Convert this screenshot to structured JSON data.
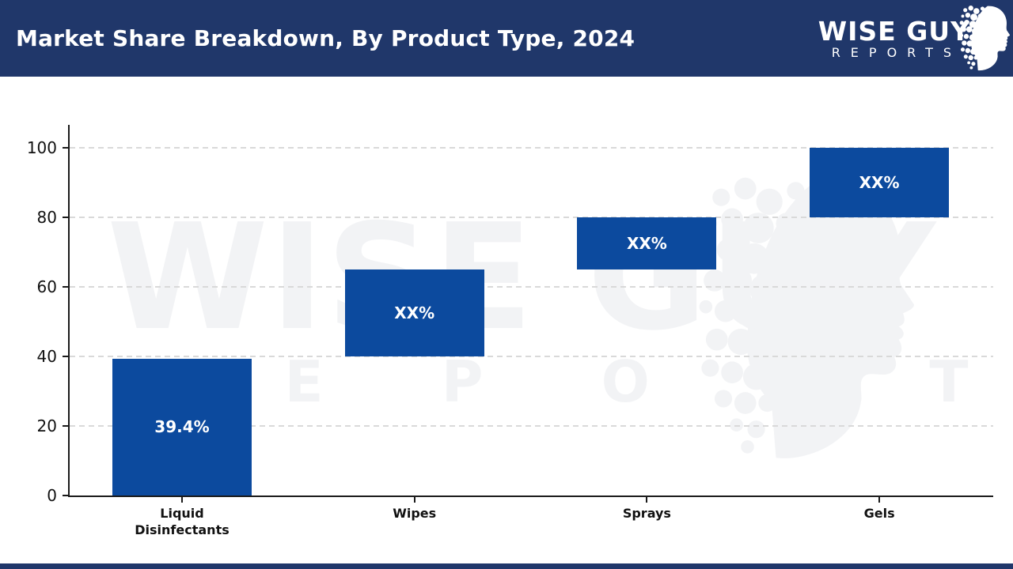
{
  "header": {
    "title": "Market Share Breakdown, By Product Type, 2024",
    "logo_line1": "WISE GUY",
    "logo_line2": "REPORTS"
  },
  "watermark": {
    "line1": "WISE GUY",
    "line2": "R E P O R T S"
  },
  "colors": {
    "header_bg": "#20376a",
    "footer_bg": "#20376a",
    "bar": "#0c4a9e",
    "bar_label": "#ffffff",
    "grid": "#d9d9d9",
    "axis": "#1a1a1a",
    "watermark": "#f2f3f5"
  },
  "chart_data": {
    "type": "bar",
    "subtype": "waterfall",
    "title": "Market Share Breakdown, By Product Type, 2024",
    "categories": [
      "Liquid\nDisinfectants",
      "Wipes",
      "Sprays",
      "Gels"
    ],
    "segments": [
      {
        "category": "Liquid\nDisinfectants",
        "start": 0,
        "end": 39.4,
        "label": "39.4%"
      },
      {
        "category": "Wipes",
        "start": 40,
        "end": 65,
        "label": "XX%"
      },
      {
        "category": "Sprays",
        "start": 65,
        "end": 80,
        "label": "XX%"
      },
      {
        "category": "Gels",
        "start": 80,
        "end": 100,
        "label": "XX%"
      }
    ],
    "xlabel": "",
    "ylabel": "",
    "yticks": [
      0,
      20,
      40,
      60,
      80,
      100
    ],
    "ylim": [
      0,
      107
    ],
    "grid": "horizontal-dashed",
    "legend": "none"
  }
}
